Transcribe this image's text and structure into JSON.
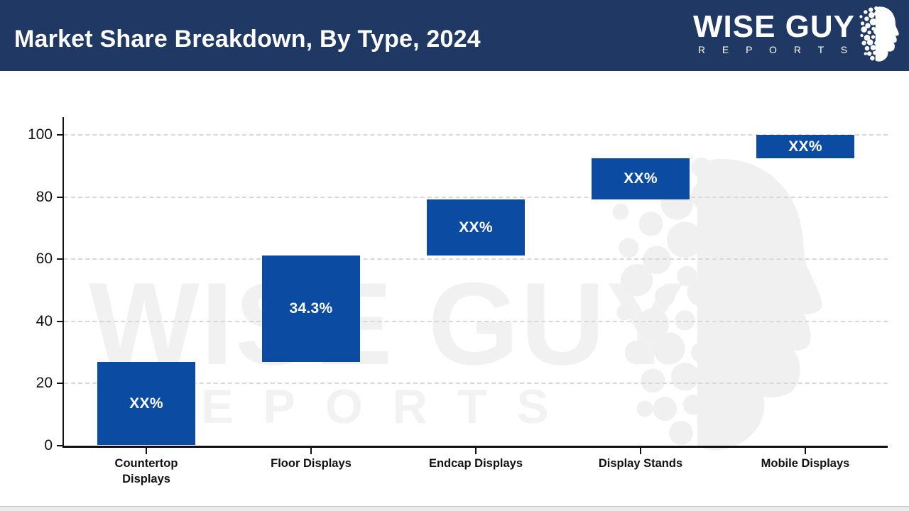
{
  "header": {
    "title": "Market Share Breakdown, By Type, 2024",
    "bg_color": "#1F3864",
    "logo": {
      "wordmark": "WISE GUY",
      "subtext": "R E P O R T S"
    }
  },
  "watermark": {
    "wordmark": "WISE GUY",
    "subtext": "REPORTS"
  },
  "chart_data": {
    "type": "bar",
    "subtype": "waterfall",
    "title": "Market Share Breakdown, By Type, 2024",
    "xlabel": "",
    "ylabel": "",
    "ylim": [
      0,
      100
    ],
    "yticks": [
      0,
      20,
      40,
      60,
      80,
      100
    ],
    "grid": "horizontal-dashed",
    "legend": "none",
    "bar_color": "#0B4BA2",
    "bar_label_color": "#ffffff",
    "categories": [
      "Countertop Displays",
      "Floor Displays",
      "Endcap Displays",
      "Display Stands",
      "Mobile Displays"
    ],
    "xtick_labels": [
      "Countertop\nDisplays",
      "Floor Displays",
      "Endcap Displays",
      "Display Stands",
      "Mobile Displays"
    ],
    "series": [
      {
        "name": "Market Share",
        "values": [
          26.8,
          34.3,
          18.2,
          13.1,
          7.6
        ],
        "segments": [
          {
            "category": "Countertop Displays",
            "start": 0,
            "end": 26.8,
            "label": "XX%"
          },
          {
            "category": "Floor Displays",
            "start": 26.8,
            "end": 61.1,
            "label": "34.3%"
          },
          {
            "category": "Endcap Displays",
            "start": 61.1,
            "end": 79.3,
            "label": "XX%"
          },
          {
            "category": "Display Stands",
            "start": 79.3,
            "end": 92.4,
            "label": "XX%"
          },
          {
            "category": "Mobile Displays",
            "start": 92.4,
            "end": 100,
            "label": "XX%"
          }
        ]
      }
    ]
  }
}
